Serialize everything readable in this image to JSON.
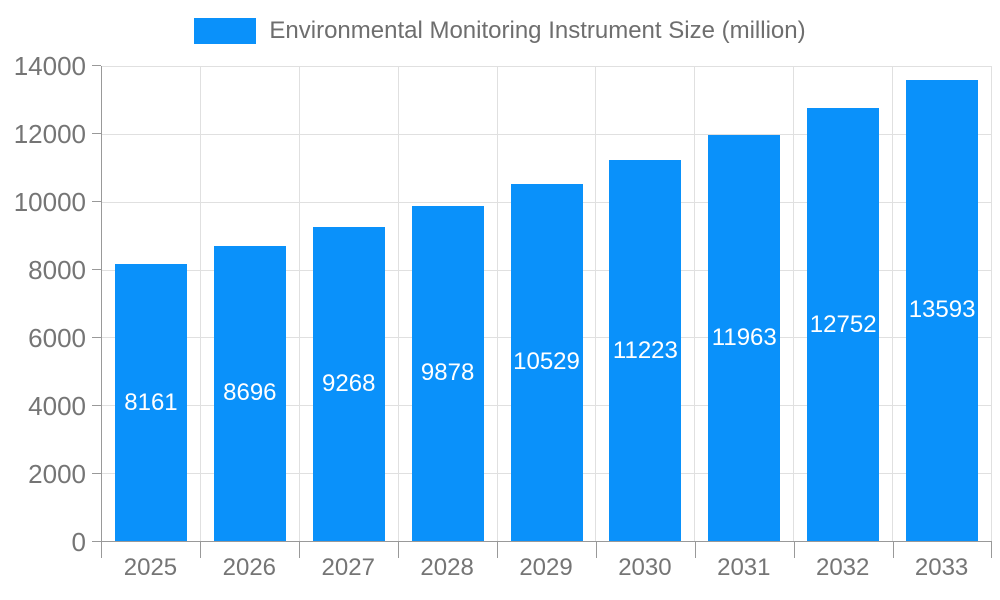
{
  "page": {
    "background": "#ffffff"
  },
  "legend": {
    "position": "top-center"
  },
  "chart_data": {
    "type": "bar",
    "title": "Environmental Monitoring Instrument Size (million)",
    "categories": [
      "2025",
      "2026",
      "2027",
      "2028",
      "2029",
      "2030",
      "2031",
      "2032",
      "2033"
    ],
    "values": [
      8161,
      8696,
      9268,
      9878,
      10529,
      11223,
      11963,
      12752,
      13593
    ],
    "value_labels": [
      "8161",
      "8696",
      "9268",
      "9878",
      "10529",
      "11223",
      "11963",
      "12752",
      "13593"
    ],
    "xlabel": "",
    "ylabel": "",
    "ylim": [
      0,
      14000
    ],
    "yticks": [
      0,
      2000,
      4000,
      6000,
      8000,
      10000,
      12000,
      14000
    ],
    "grid": true,
    "legend_position": "top-center",
    "bar_color": "#0a91fa",
    "bar_label_color": "#ffffff",
    "grid_color": "#e0e0e0",
    "axis_color": "#999999",
    "tick_label_color": "#757575",
    "title_color": "#6e6e6e"
  }
}
